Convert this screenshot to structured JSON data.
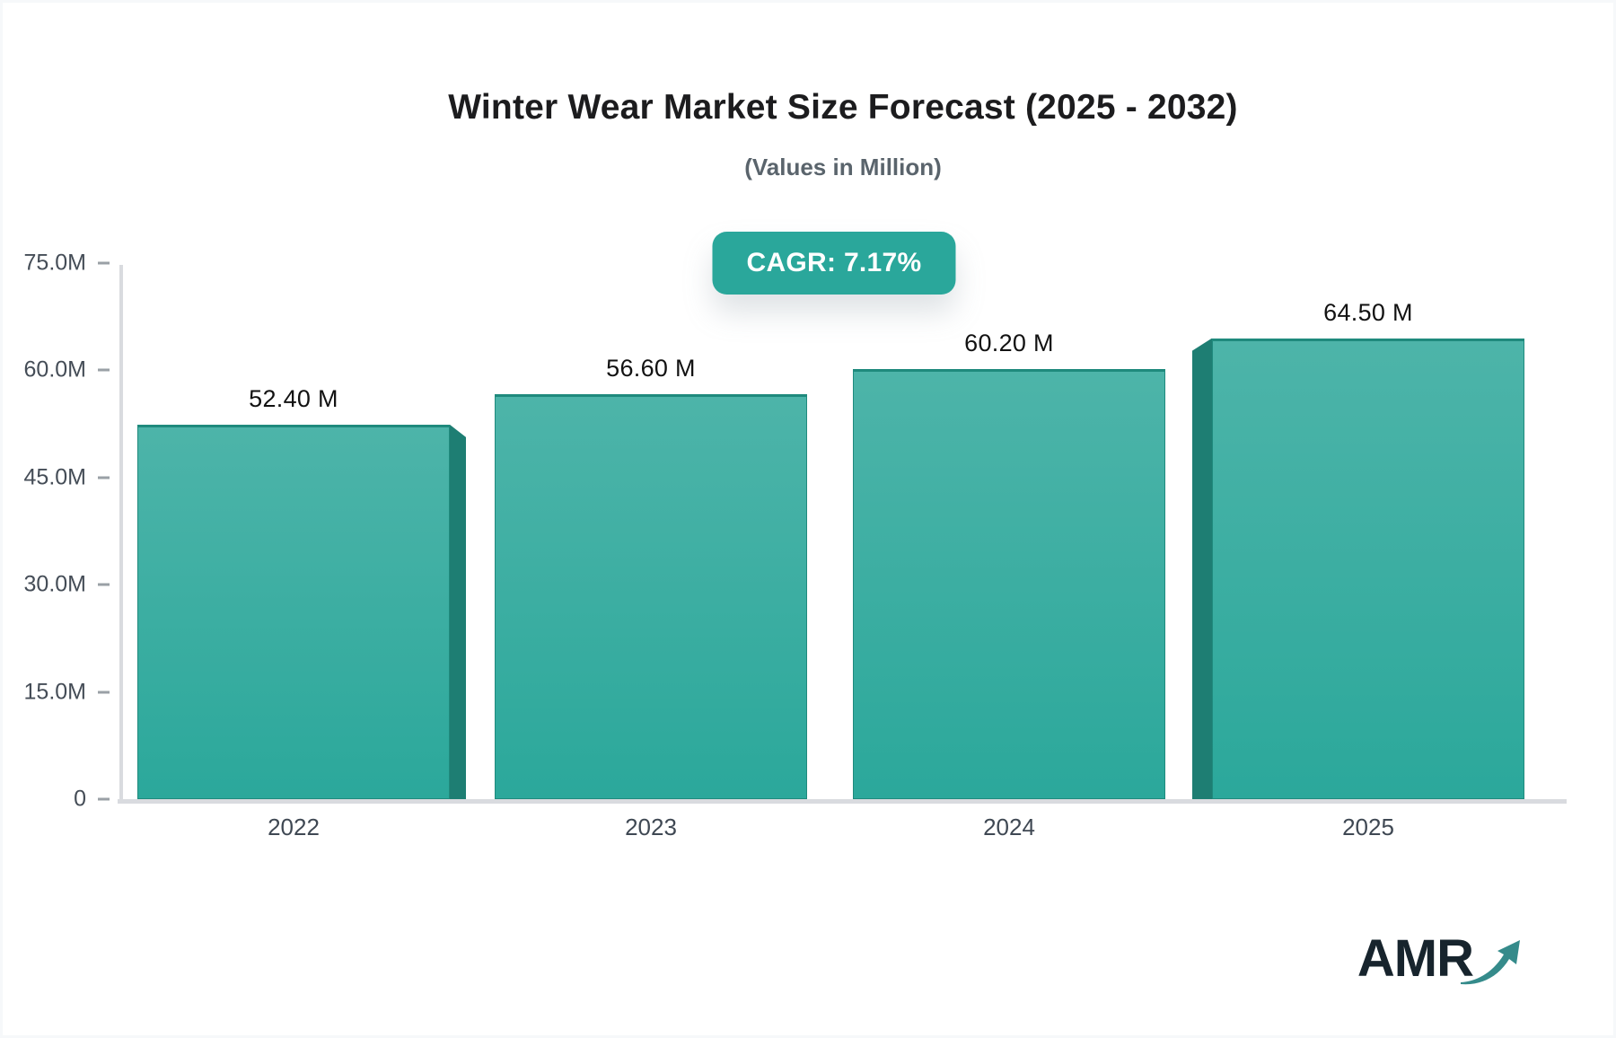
{
  "page": {
    "title": "Winter Wear Market Size Forecast (2025 - 2032)",
    "subtitle": "(Values in Million)",
    "cagr_badge": "CAGR: 7.17%",
    "logo_text": "AMR"
  },
  "colors": {
    "bar_top": "#4db4a9",
    "bar_bottom": "#2ba89b",
    "bar_dark": "#1e7e73",
    "bar_border": "#1f8a7d",
    "badge_bg": "#2aa79b",
    "axis_line": "#d9dbdf",
    "tick_dash": "#9aa0a6",
    "logo_navy": "#17242d",
    "logo_arrow": "#358b8b"
  },
  "chart_data": {
    "type": "bar",
    "title": "Winter Wear Market Size Forecast (2025 - 2032)",
    "subtitle": "(Values in Million)",
    "cagr_label": "CAGR: 7.17%",
    "unit": "Million",
    "categories": [
      "2022",
      "2023",
      "2024",
      "2025"
    ],
    "values": [
      52.4,
      56.6,
      60.2,
      64.5
    ],
    "value_labels": [
      "52.40 M",
      "56.60 M",
      "60.20 M",
      "64.50 M"
    ],
    "ylim": [
      0,
      75
    ],
    "y_tick_labels": [
      "75.0M",
      "60.0M",
      "45.0M",
      "30.0M",
      "15.0M",
      "0"
    ],
    "grid": false,
    "legend": false
  }
}
